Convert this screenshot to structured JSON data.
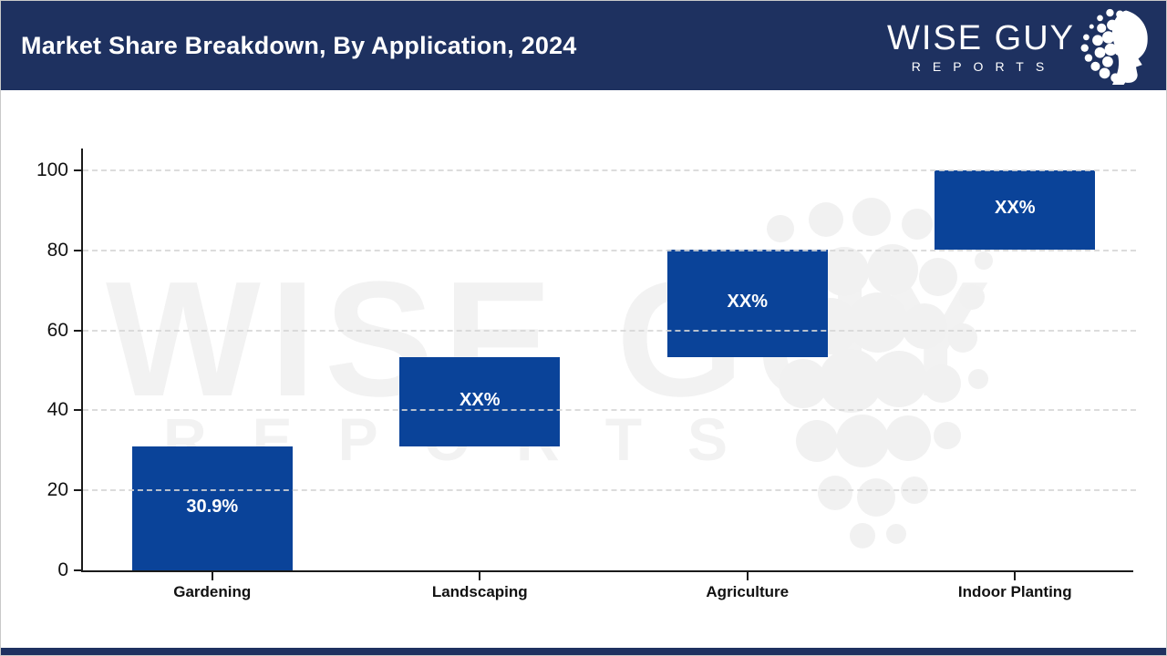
{
  "header": {
    "title": "Market Share Breakdown, By Application, 2024",
    "bg_color": "#1e3160",
    "logo": {
      "line1": "WISE GUY",
      "line2": "REPORTS"
    }
  },
  "watermark": {
    "line1": "WISE GUY",
    "line2": "REPORTS"
  },
  "footer": {
    "bg_color": "#1e3160"
  },
  "chart_data": {
    "type": "bar",
    "variant": "waterfall",
    "title": "Market Share Breakdown, By Application, 2024",
    "categories": [
      "Gardening",
      "Landscaping",
      "Agriculture",
      "Indoor Planting"
    ],
    "segments": [
      {
        "category": "Gardening",
        "start": 0,
        "end": 30.9,
        "value": 30.9,
        "label": "30.9%"
      },
      {
        "category": "Landscaping",
        "start": 30.9,
        "end": 53.2,
        "value": 22.3,
        "label": "XX%"
      },
      {
        "category": "Agriculture",
        "start": 53.2,
        "end": 80.2,
        "value": 27.0,
        "label": "XX%"
      },
      {
        "category": "Indoor Planting",
        "start": 80.2,
        "end": 100,
        "value": 19.8,
        "label": "XX%"
      }
    ],
    "xlabel": "",
    "ylabel": "",
    "ylim": [
      0,
      100
    ],
    "yticks": [
      0,
      20,
      40,
      60,
      80,
      100
    ],
    "grid": true,
    "gridline_style": "dashed",
    "legend": "none",
    "bar_color": "#0a4399",
    "label_color": "#ffffff"
  }
}
